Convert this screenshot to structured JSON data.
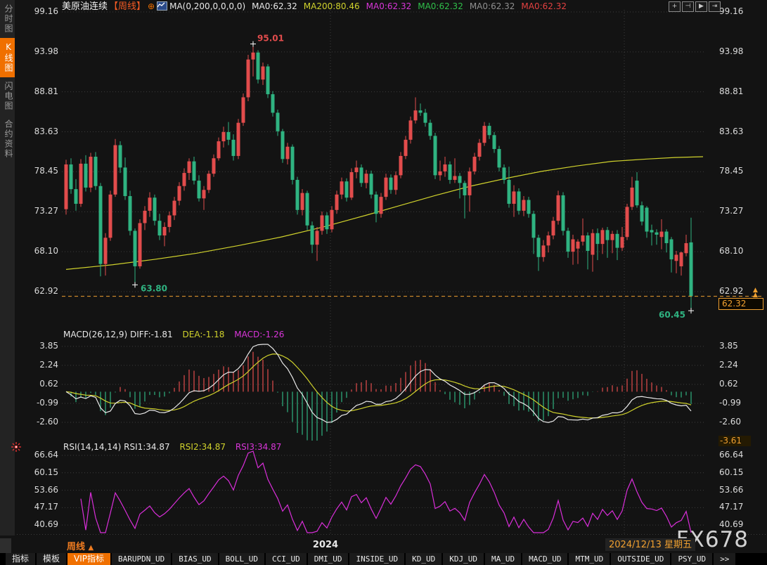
{
  "window": {
    "title": "美原油连续 周线 K线图"
  },
  "sidebar": {
    "items": [
      {
        "label": "分时图",
        "active": false
      },
      {
        "label": "K线图",
        "active": true
      },
      {
        "label": "闪电图",
        "active": false
      },
      {
        "label": "合约资料",
        "active": false
      }
    ]
  },
  "header": {
    "title": "美原油连续",
    "period_tag": "【周线】",
    "link_glyph": "⊕",
    "ma_settings": "MA(0,200,0,0,0,0)",
    "ma_values": [
      {
        "text": "MA0:62.32",
        "color": "#e8e8e8"
      },
      {
        "text": "MA200:80.46",
        "color": "#d0d22c"
      },
      {
        "text": "MA0:62.32",
        "color": "#d935d9"
      },
      {
        "text": "MA0:62.32",
        "color": "#2fbf4a"
      },
      {
        "text": "MA0:62.32",
        "color": "#8f8f8f"
      },
      {
        "text": "MA0:62.32",
        "color": "#e34141"
      }
    ],
    "window_buttons": [
      {
        "name": "pan-icon",
        "glyph": "+"
      },
      {
        "name": "axis-scale-icon",
        "glyph": "⊣"
      },
      {
        "name": "axis-play-icon",
        "glyph": "▶"
      },
      {
        "name": "exit-icon",
        "glyph": "⇥"
      }
    ]
  },
  "price_pane": {
    "axis_labels": [
      "99.16",
      "93.98",
      "88.81",
      "83.63",
      "78.45",
      "73.27",
      "68.10",
      "62.92"
    ],
    "last_price_tag": "62.32",
    "annotations": {
      "high": {
        "text": "95.01",
        "index": 38
      },
      "low": {
        "text": "63.80",
        "index": 14
      },
      "current_low": {
        "text": "60.45",
        "index": 127
      }
    }
  },
  "macd_pane": {
    "header": {
      "white": "MACD(26,12,9) DIFF:-1.81",
      "yellow": "DEA:-1.18",
      "magenta": "MACD:-1.26"
    },
    "axis_labels": [
      "3.85",
      "2.24",
      "0.62",
      "-0.99",
      "-2.60"
    ],
    "last_value_tag": "-3.61"
  },
  "rsi_pane": {
    "header": {
      "white": "RSI(14,14,14) RSI1:34.87",
      "yellow": "RSI2:34.87",
      "magenta": "RSI3:34.87"
    },
    "axis_labels": [
      "66.64",
      "60.15",
      "53.66",
      "47.17",
      "40.69"
    ]
  },
  "footer": {
    "period_label": "周线",
    "period_arrow": "▲",
    "year_label": "2024",
    "date_label": "2024/12/13 星期五",
    "watermark": "FX678"
  },
  "tabs": [
    {
      "label": "指标",
      "cjk": true,
      "active": false
    },
    {
      "label": "模板",
      "cjk": true,
      "active": false
    },
    {
      "label": "VIP指标",
      "cjk": true,
      "active": true
    },
    {
      "label": "BARUPDN_UD",
      "cjk": false,
      "active": false
    },
    {
      "label": "BIAS_UD",
      "cjk": false,
      "active": false
    },
    {
      "label": "BOLL_UD",
      "cjk": false,
      "active": false
    },
    {
      "label": "CCI_UD",
      "cjk": false,
      "active": false
    },
    {
      "label": "DMI_UD",
      "cjk": false,
      "active": false
    },
    {
      "label": "INSIDE_UD",
      "cjk": false,
      "active": false
    },
    {
      "label": "KD_UD",
      "cjk": false,
      "active": false
    },
    {
      "label": "KDJ_UD",
      "cjk": false,
      "active": false
    },
    {
      "label": "MA_UD",
      "cjk": false,
      "active": false
    },
    {
      "label": "MACD_UD",
      "cjk": false,
      "active": false
    },
    {
      "label": "MTM_UD",
      "cjk": false,
      "active": false
    },
    {
      "label": "OUTSIDE_UD",
      "cjk": false,
      "active": false
    },
    {
      "label": "PSY_UD",
      "cjk": false,
      "active": false
    },
    {
      "label": ">>",
      "cjk": false,
      "active": false
    }
  ],
  "colors": {
    "up": "#e24c4c",
    "down": "#2fb381",
    "ma200": "#d0d22c",
    "accent_orange": "#f0a030",
    "active_orange": "#f07000",
    "rsi": "#d92ed9",
    "grid": "#3c3c3c",
    "background": "#131313"
  },
  "chart_data": {
    "type": "candlestick",
    "symbol": "美原油连续",
    "period": "weekly",
    "title": "美原油连续 周线",
    "price_axis": {
      "top_price": 99.16,
      "bottom_price": 62.92,
      "gridline_prices": [
        99.16,
        93.98,
        88.81,
        83.63,
        78.45,
        73.27,
        68.1,
        62.92
      ]
    },
    "last_close": 62.32,
    "high_of_range": 95.01,
    "low_of_range": 63.8,
    "current_week_low": 60.45,
    "vertical_gridlines_x": [
      470,
      888
    ],
    "candles": [
      [
        73.6,
        80.0,
        72.9,
        79.4
      ],
      [
        79.4,
        80.2,
        75.6,
        76.2
      ],
      [
        76.2,
        77.5,
        73.4,
        74.3
      ],
      [
        74.3,
        80.1,
        73.9,
        79.5
      ],
      [
        79.5,
        80.6,
        75.9,
        76.4
      ],
      [
        76.4,
        80.9,
        75.8,
        80.4
      ],
      [
        80.4,
        81.0,
        76.1,
        76.6
      ],
      [
        76.6,
        77.0,
        64.9,
        66.5
      ],
      [
        66.5,
        70.5,
        65.0,
        69.9
      ],
      [
        69.9,
        76.0,
        69.5,
        75.5
      ],
      [
        75.5,
        82.7,
        75.2,
        81.9
      ],
      [
        81.9,
        82.4,
        78.3,
        79.0
      ],
      [
        79.0,
        80.3,
        74.8,
        75.3
      ],
      [
        75.3,
        76.0,
        70.2,
        70.8
      ],
      [
        70.8,
        71.1,
        63.8,
        66.2
      ],
      [
        66.2,
        72.3,
        65.9,
        71.8
      ],
      [
        71.8,
        74.0,
        70.9,
        73.4
      ],
      [
        73.4,
        75.8,
        72.6,
        75.1
      ],
      [
        75.1,
        75.5,
        71.5,
        72.1
      ],
      [
        72.1,
        73.0,
        69.6,
        70.2
      ],
      [
        70.2,
        71.9,
        68.8,
        71.3
      ],
      [
        71.3,
        73.3,
        70.6,
        72.8
      ],
      [
        72.8,
        75.2,
        72.2,
        74.7
      ],
      [
        74.7,
        77.1,
        74.1,
        76.6
      ],
      [
        76.6,
        78.9,
        76.0,
        78.3
      ],
      [
        78.3,
        80.2,
        77.4,
        79.8
      ],
      [
        79.8,
        80.4,
        76.8,
        77.3
      ],
      [
        77.3,
        78.0,
        74.6,
        75.0
      ],
      [
        75.0,
        76.6,
        73.5,
        76.1
      ],
      [
        76.1,
        78.6,
        75.7,
        78.2
      ],
      [
        78.2,
        80.7,
        77.8,
        80.2
      ],
      [
        80.2,
        82.9,
        79.9,
        82.4
      ],
      [
        82.4,
        84.3,
        81.6,
        83.6
      ],
      [
        83.6,
        84.9,
        81.9,
        82.6
      ],
      [
        82.6,
        83.3,
        79.9,
        80.5
      ],
      [
        80.5,
        85.3,
        80.1,
        84.8
      ],
      [
        84.8,
        88.6,
        84.4,
        88.1
      ],
      [
        88.1,
        93.6,
        87.6,
        93.0
      ],
      [
        93.0,
        95.01,
        90.8,
        93.9
      ],
      [
        93.9,
        94.2,
        89.9,
        90.4
      ],
      [
        90.4,
        92.6,
        89.7,
        92.1
      ],
      [
        92.1,
        92.4,
        88.0,
        88.5
      ],
      [
        88.5,
        88.9,
        85.6,
        86.1
      ],
      [
        86.1,
        86.5,
        83.1,
        83.7
      ],
      [
        83.7,
        84.0,
        79.6,
        80.1
      ],
      [
        80.1,
        82.2,
        79.4,
        81.7
      ],
      [
        81.7,
        82.0,
        76.8,
        77.4
      ],
      [
        77.4,
        77.8,
        72.9,
        73.5
      ],
      [
        73.5,
        76.2,
        72.8,
        75.7
      ],
      [
        75.7,
        76.0,
        70.9,
        71.5
      ],
      [
        71.5,
        72.0,
        67.9,
        69.0
      ],
      [
        69.0,
        71.3,
        66.9,
        70.8
      ],
      [
        70.8,
        73.3,
        70.3,
        72.8
      ],
      [
        72.8,
        73.2,
        70.4,
        71.0
      ],
      [
        71.0,
        74.0,
        70.6,
        73.5
      ],
      [
        73.5,
        76.0,
        73.0,
        75.5
      ],
      [
        75.5,
        77.7,
        74.9,
        77.2
      ],
      [
        77.2,
        77.6,
        74.6,
        75.1
      ],
      [
        75.1,
        78.9,
        74.8,
        78.4
      ],
      [
        78.4,
        79.9,
        77.6,
        79.0
      ],
      [
        79.0,
        79.4,
        76.5,
        77.0
      ],
      [
        77.0,
        78.7,
        76.3,
        78.2
      ],
      [
        78.2,
        78.6,
        75.0,
        75.5
      ],
      [
        75.5,
        75.9,
        71.9,
        73.0
      ],
      [
        73.0,
        75.7,
        72.5,
        75.2
      ],
      [
        75.2,
        78.2,
        74.8,
        77.7
      ],
      [
        77.7,
        78.1,
        75.6,
        76.1
      ],
      [
        76.1,
        78.5,
        75.5,
        78.0
      ],
      [
        78.0,
        81.0,
        77.6,
        80.5
      ],
      [
        80.5,
        83.1,
        80.1,
        82.6
      ],
      [
        82.6,
        85.6,
        82.1,
        85.1
      ],
      [
        85.1,
        88.1,
        84.7,
        86.4
      ],
      [
        86.4,
        87.3,
        85.7,
        86.1
      ],
      [
        86.1,
        86.6,
        84.3,
        84.8
      ],
      [
        84.8,
        85.2,
        82.6,
        83.1
      ],
      [
        83.1,
        83.5,
        77.5,
        78.0
      ],
      [
        78.0,
        79.9,
        77.3,
        78.5
      ],
      [
        78.5,
        80.4,
        77.8,
        79.4
      ],
      [
        79.4,
        79.8,
        76.9,
        77.4
      ],
      [
        77.4,
        80.2,
        77.0,
        77.9
      ],
      [
        77.9,
        78.3,
        75.0,
        77.0
      ],
      [
        77.0,
        77.3,
        72.4,
        75.4
      ],
      [
        75.4,
        79.0,
        73.3,
        78.5
      ],
      [
        78.5,
        80.9,
        78.1,
        80.4
      ],
      [
        80.4,
        82.7,
        79.9,
        82.2
      ],
      [
        82.2,
        84.9,
        81.8,
        84.4
      ],
      [
        84.4,
        84.8,
        82.7,
        83.2
      ],
      [
        83.2,
        83.6,
        80.9,
        81.4
      ],
      [
        81.4,
        81.8,
        78.5,
        79.0
      ],
      [
        79.0,
        79.4,
        76.9,
        77.4
      ],
      [
        77.4,
        79.1,
        73.8,
        74.3
      ],
      [
        74.3,
        76.7,
        72.6,
        75.9
      ],
      [
        75.9,
        76.3,
        72.9,
        73.4
      ],
      [
        73.4,
        75.3,
        72.7,
        74.8
      ],
      [
        74.8,
        75.2,
        72.5,
        73.0
      ],
      [
        73.0,
        73.4,
        67.8,
        69.9
      ],
      [
        69.9,
        70.3,
        65.6,
        67.4
      ],
      [
        67.4,
        69.6,
        66.8,
        68.9
      ],
      [
        68.9,
        70.7,
        68.0,
        70.2
      ],
      [
        70.2,
        72.6,
        69.7,
        72.1
      ],
      [
        72.1,
        76.0,
        71.6,
        75.4
      ],
      [
        75.4,
        75.8,
        70.2,
        70.8
      ],
      [
        70.8,
        71.2,
        67.3,
        68.1
      ],
      [
        68.1,
        70.3,
        66.4,
        69.7
      ],
      [
        68.5,
        69.7,
        66.5,
        69.4
      ],
      [
        69.4,
        72.4,
        68.9,
        70.2
      ],
      [
        70.2,
        70.6,
        65.8,
        68.2
      ],
      [
        67.7,
        71.0,
        65.5,
        70.5
      ],
      [
        70.5,
        71.1,
        67.0,
        69.1
      ],
      [
        69.1,
        71.2,
        67.8,
        70.9
      ],
      [
        70.9,
        71.3,
        67.3,
        69.6
      ],
      [
        69.6,
        70.8,
        67.9,
        70.4
      ],
      [
        70.4,
        70.9,
        67.0,
        68.6
      ],
      [
        68.6,
        71.3,
        68.2,
        70.0
      ],
      [
        70.0,
        74.3,
        69.6,
        73.9
      ],
      [
        73.9,
        77.8,
        73.5,
        76.4
      ],
      [
        77.3,
        78.4,
        73.8,
        74.1
      ],
      [
        74.1,
        74.6,
        71.5,
        72.0
      ],
      [
        73.8,
        74.0,
        69.9,
        70.7
      ],
      [
        70.9,
        71.6,
        68.9,
        70.6
      ],
      [
        70.6,
        71.0,
        69.0,
        70.3
      ],
      [
        70.0,
        72.3,
        68.4,
        70.7
      ],
      [
        70.7,
        71.0,
        68.0,
        69.2
      ],
      [
        69.7,
        70.0,
        65.4,
        67.1
      ],
      [
        66.9,
        68.2,
        65.3,
        67.7
      ],
      [
        66.2,
        68.1,
        65.0,
        68.0
      ],
      [
        67.9,
        70.3,
        67.5,
        69.2
      ],
      [
        69.3,
        72.5,
        60.45,
        62.32
      ]
    ],
    "ma200_line": [
      [
        94,
        65.8
      ],
      [
        160,
        66.4
      ],
      [
        220,
        67.1
      ],
      [
        280,
        67.9
      ],
      [
        340,
        68.9
      ],
      [
        400,
        70.0
      ],
      [
        460,
        71.3
      ],
      [
        520,
        72.8
      ],
      [
        570,
        74.1
      ],
      [
        620,
        75.4
      ],
      [
        670,
        76.6
      ],
      [
        720,
        77.6
      ],
      [
        770,
        78.5
      ],
      [
        820,
        79.2
      ],
      [
        870,
        79.8
      ],
      [
        920,
        80.1
      ],
      [
        960,
        80.3
      ],
      [
        1000,
        80.4
      ]
    ],
    "indicators": {
      "macd": {
        "fast": 12,
        "slow": 26,
        "signal": 9,
        "diff": -1.81,
        "dea": -1.18,
        "macd": -1.26,
        "grid_values": [
          3.85,
          2.24,
          0.62,
          -0.99,
          -2.6
        ],
        "last_value": -3.61
      },
      "rsi": {
        "periods": [
          14,
          14,
          14
        ],
        "rsi1": 34.87,
        "rsi2": 34.87,
        "rsi3": 34.87,
        "grid_values": [
          66.64,
          60.15,
          53.66,
          47.17,
          40.69
        ]
      }
    }
  }
}
